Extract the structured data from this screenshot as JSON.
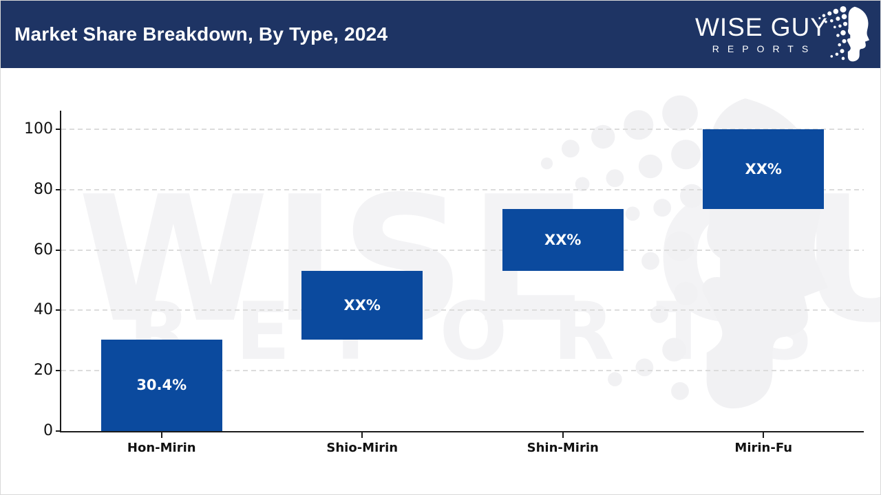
{
  "header": {
    "title": "Market Share Breakdown, By Type, 2024",
    "logo": {
      "wordmark": "WISE GUY",
      "subtext": "REPORTS"
    }
  },
  "watermark": {
    "line1": "WISE GUY",
    "line2": "REPORTS"
  },
  "colors": {
    "header_bg": "#1e3464",
    "bar": "#0b4a9e",
    "grid": "#dcdcdc",
    "axis": "#1a1a1a",
    "watermark_text": "#f3f3f5",
    "title_text": "#ffffff",
    "bar_label_text": "#ffffff"
  },
  "chart_data": {
    "type": "bar",
    "variant": "waterfall",
    "title": "Market Share Breakdown, By Type, 2024",
    "categories": [
      "Hon-Mirin",
      "Shio-Mirin",
      "Shin-Mirin",
      "Mirin-Fu"
    ],
    "bars": [
      {
        "category": "Hon-Mirin",
        "start": 0,
        "end": 30.4,
        "label": "30.4%"
      },
      {
        "category": "Shio-Mirin",
        "start": 30.4,
        "end": 53.0,
        "label": "XX%"
      },
      {
        "category": "Shin-Mirin",
        "start": 53.0,
        "end": 73.6,
        "label": "XX%"
      },
      {
        "category": "Mirin-Fu",
        "start": 73.6,
        "end": 100,
        "label": "XX%"
      }
    ],
    "ylim": [
      0,
      100
    ],
    "yticks": [
      0,
      20,
      40,
      60,
      80,
      100
    ],
    "xlabel": "",
    "ylabel": "",
    "grid": true,
    "legend": false,
    "value_labels_inside_bars": true
  }
}
